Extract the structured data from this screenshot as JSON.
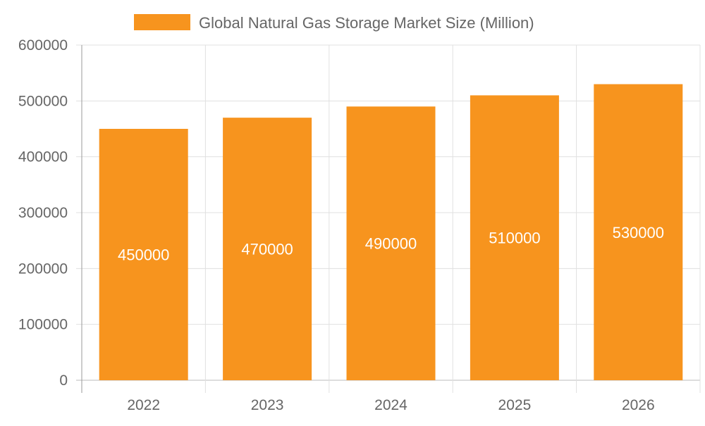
{
  "chart_data": {
    "type": "bar",
    "categories": [
      "2022",
      "2023",
      "2024",
      "2025",
      "2026"
    ],
    "series": [
      {
        "name": "Global Natural Gas Storage Market Size (Million)",
        "values": [
          450000,
          470000,
          490000,
          510000,
          530000
        ],
        "color": "#F7941E"
      }
    ],
    "yticks": [
      "0",
      "100000",
      "200000",
      "300000",
      "400000",
      "500000",
      "600000"
    ],
    "ylim": [
      0,
      600000
    ],
    "xlabel": "",
    "ylabel": "",
    "grid": true,
    "legend": "top-center",
    "data_labels": true
  }
}
